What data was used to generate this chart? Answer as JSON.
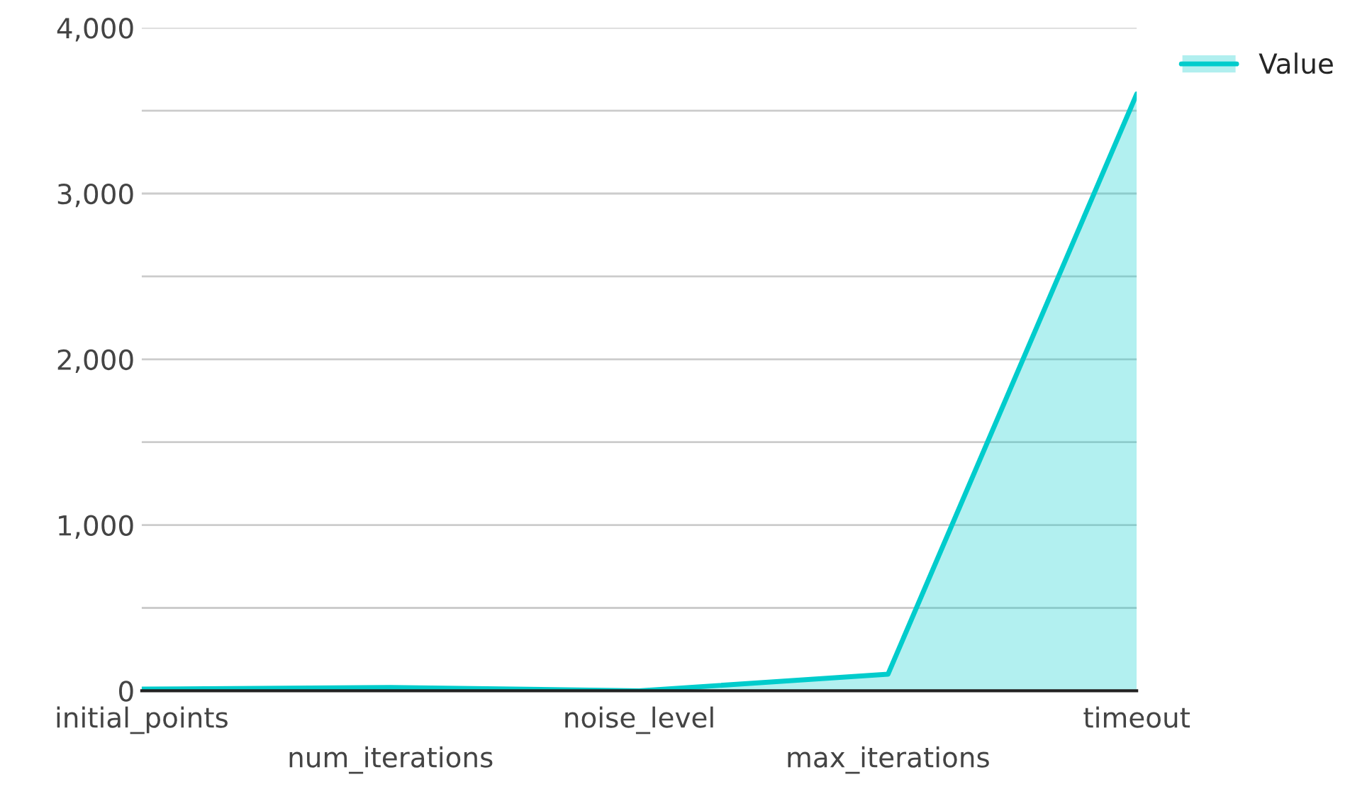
{
  "chart_data": {
    "type": "area",
    "categories": [
      "initial_points",
      "num_iterations",
      "noise_level",
      "max_iterations",
      "timeout"
    ],
    "series": [
      {
        "name": "Value",
        "color": "#00cccc",
        "values": [
          10,
          20,
          0,
          100,
          3600
        ]
      }
    ],
    "ylim": [
      0,
      4000
    ],
    "yticks": [
      0,
      {
        "value": 500,
        "label": null
      },
      {
        "value": 1000,
        "label": "1,000"
      },
      {
        "value": 1500,
        "label": null
      },
      {
        "value": 2000,
        "label": "2,000"
      },
      {
        "value": 2500,
        "label": null
      },
      {
        "value": 3000,
        "label": "3,000"
      },
      {
        "value": 3500,
        "label": null
      },
      {
        "value": 4000,
        "label": "4,000"
      }
    ],
    "grid": "y",
    "legend": "top right"
  }
}
